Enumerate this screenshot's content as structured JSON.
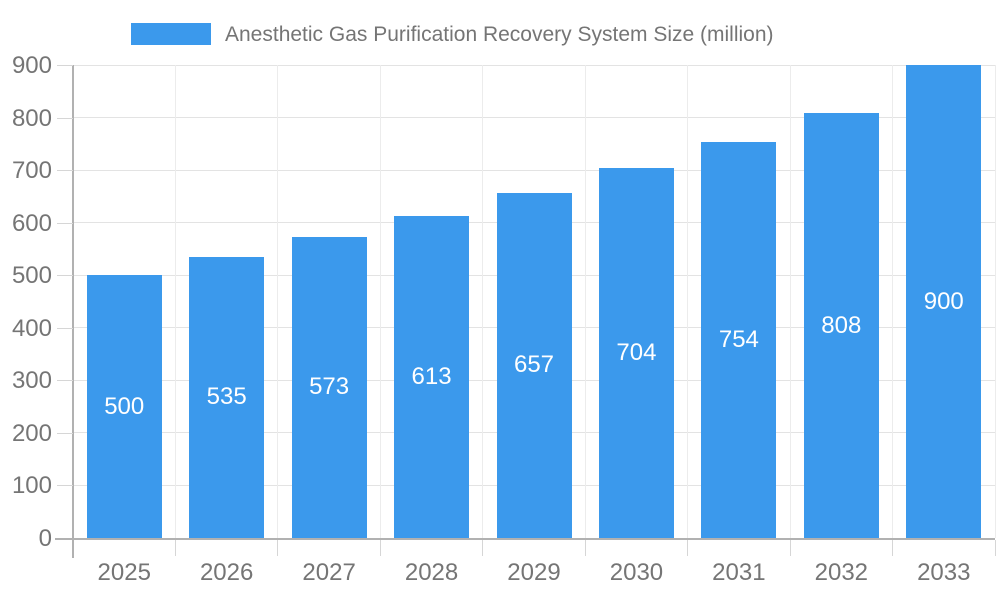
{
  "legend": {
    "label": "Anesthetic Gas Purification Recovery System Size (million)"
  },
  "chart_data": {
    "type": "bar",
    "title": "Anesthetic Gas Purification Recovery System Size (million)",
    "categories": [
      "2025",
      "2026",
      "2027",
      "2028",
      "2029",
      "2030",
      "2031",
      "2032",
      "2033"
    ],
    "values": [
      500,
      535,
      573,
      613,
      657,
      704,
      754,
      808,
      900
    ],
    "xlabel": "",
    "ylabel": "",
    "ylim": [
      0,
      900
    ],
    "ytick_interval": 100,
    "yticks": [
      0,
      100,
      200,
      300,
      400,
      500,
      600,
      700,
      800,
      900
    ],
    "grid": true,
    "legend_position": "top",
    "bar_label_position": "center-inside",
    "colors": {
      "bar": "#3B99EC",
      "bar_label_text": "#FFFFFF",
      "axis_text": "#757575",
      "legend_text": "#757575",
      "grid_horizontal": "#E3E3E3",
      "grid_vertical": "#ECECEC",
      "axis_line": "#B1B1B1",
      "tick": "#D6D6D6",
      "background": "#FFFFFF"
    }
  }
}
